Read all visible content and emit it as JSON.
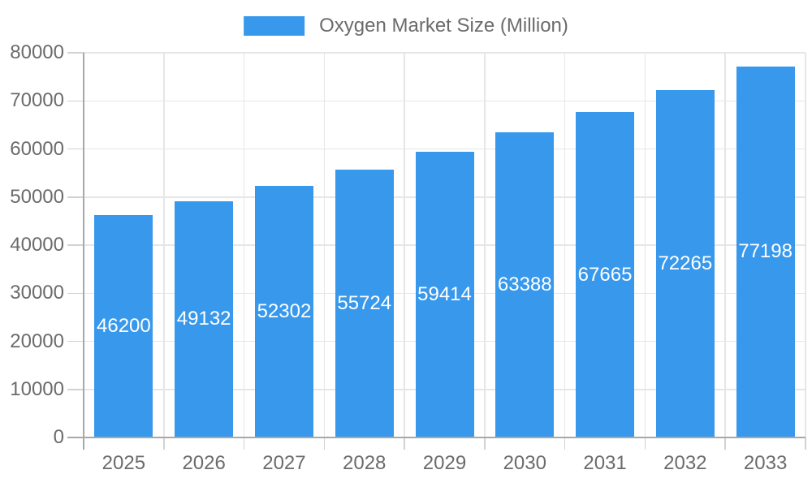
{
  "chart_data": {
    "type": "bar",
    "series_name": "Oxygen Market Size (Million)",
    "legend_position": "top",
    "categories": [
      "2025",
      "2026",
      "2027",
      "2028",
      "2029",
      "2030",
      "2031",
      "2032",
      "2033"
    ],
    "values": [
      46200,
      49132,
      52302,
      55724,
      59414,
      63388,
      67665,
      72265,
      77198
    ],
    "value_labels": [
      "46200",
      "49132",
      "52302",
      "55724",
      "59414",
      "63388",
      "67665",
      "72265",
      "77198"
    ],
    "xlabel": "",
    "ylabel": "",
    "ylim": [
      0,
      80000
    ],
    "ytick_step": 10000,
    "yticks": [
      "0",
      "10000",
      "20000",
      "30000",
      "40000",
      "50000",
      "60000",
      "70000",
      "80000"
    ],
    "grid": true,
    "colors": {
      "bar": "#3898ec",
      "axis_text": "#6b6b6b",
      "value_label_text": "#ffffff",
      "gridline": "#e6e6e6",
      "tick": "#d2d2d2",
      "axis_line": "#a8a8a8",
      "background": "#ffffff"
    }
  }
}
